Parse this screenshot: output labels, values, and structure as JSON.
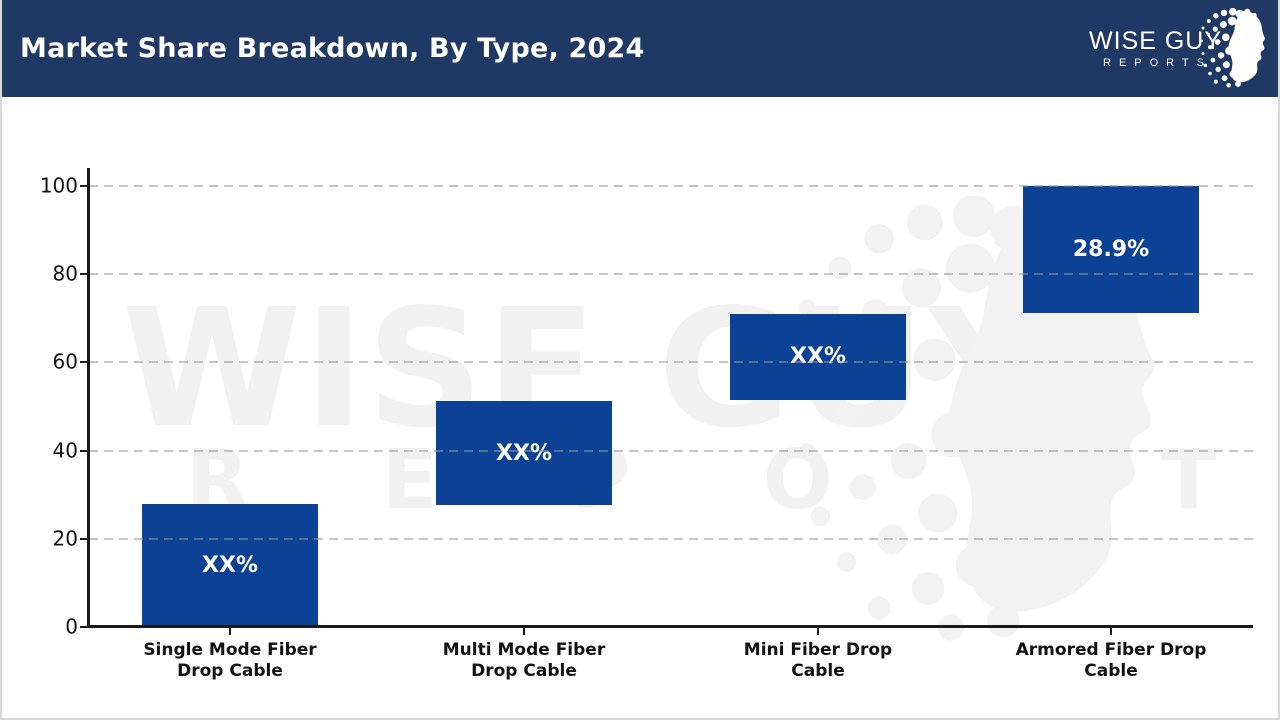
{
  "header": {
    "title": "Market Share Breakdown, By Type, 2024",
    "logo": {
      "line1": "WISE GUY",
      "line2": "REPORTS"
    }
  },
  "watermark": {
    "line1": "WISE GUY",
    "line2": "R E P O R T S"
  },
  "colors": {
    "header_bg": "#1f3864",
    "bar": "#0b4296",
    "grid": "#c8c8c8",
    "axis": "#1a1a1a",
    "watermark": "#f1f1f1"
  },
  "chart_data": {
    "type": "bar",
    "subtype": "waterfall-floating-segments",
    "title": "Market Share Breakdown, By Type, 2024",
    "categories": [
      "Single Mode Fiber\nDrop Cable",
      "Multi Mode Fiber\nDrop Cable",
      "Mini Fiber Drop\nCable",
      "Armored Fiber Drop\nCable"
    ],
    "series": [
      {
        "name": "Market Share (%)",
        "segments": [
          {
            "start": 0,
            "end": 27.9,
            "label": "XX%"
          },
          {
            "start": 27.7,
            "end": 51.2,
            "label": "XX%"
          },
          {
            "start": 51.5,
            "end": 71.0,
            "label": "XX%"
          },
          {
            "start": 71.1,
            "end": 100,
            "label": "28.9%"
          }
        ]
      }
    ],
    "ylim": [
      0,
      100
    ],
    "yticks": [
      0,
      20,
      40,
      60,
      80,
      100
    ],
    "ytick_labels": [
      "0",
      "20",
      "40",
      "60",
      "80",
      "100"
    ],
    "grid": "horizontal-dashed",
    "legend": "none",
    "bar_color": "#0b4296"
  }
}
